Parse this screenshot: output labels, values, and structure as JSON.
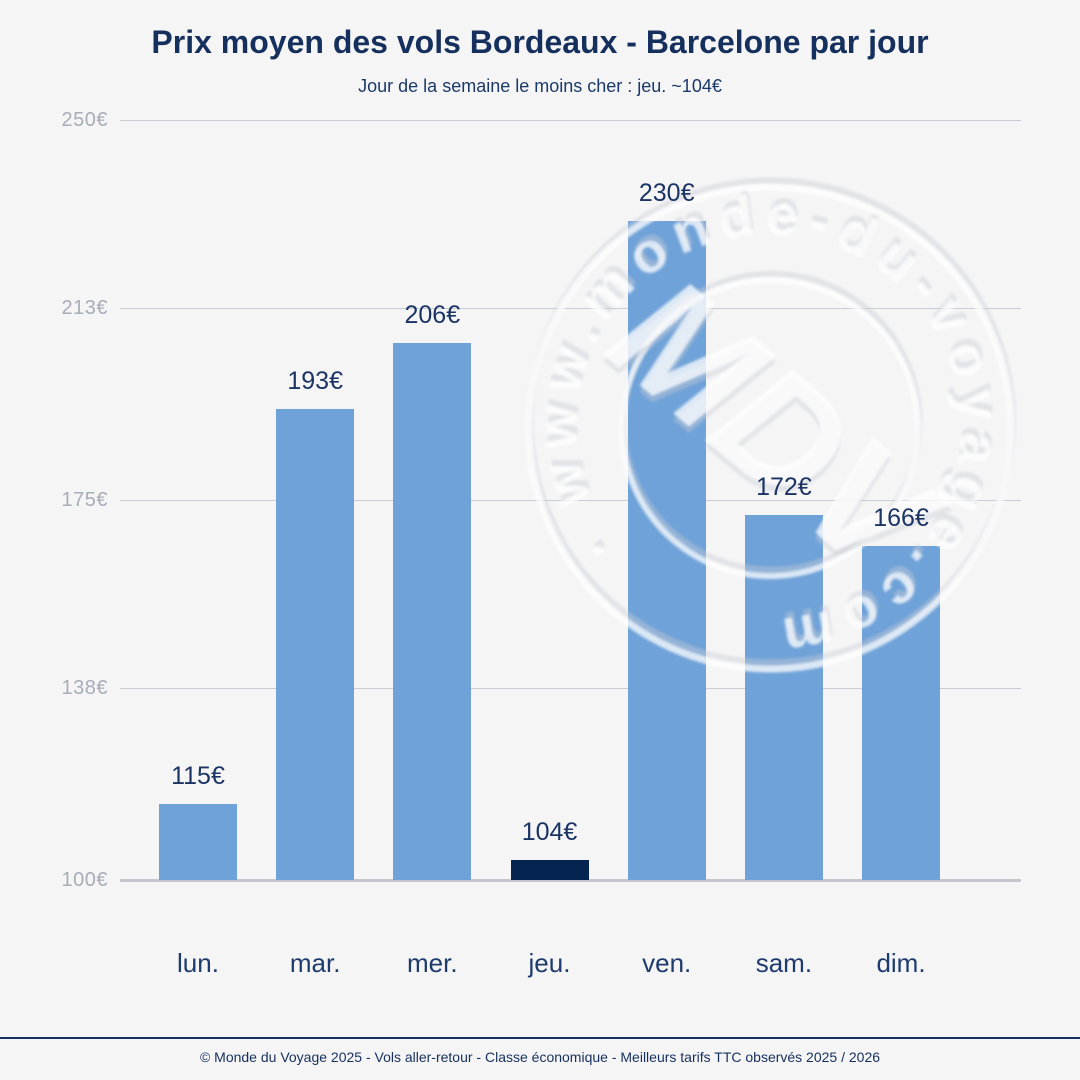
{
  "title": "Prix moyen des vols Bordeaux - Barcelone par jour",
  "subtitle": "Jour de la semaine le moins cher : jeu. ~104€",
  "footer": "© Monde du Voyage 2025 - Vols aller-retour - Classe économique - Meilleurs tarifs TTC observés 2025 / 2026",
  "watermark": {
    "ring_text": "· www.monde-du-voyage.com",
    "initials": "MDV"
  },
  "chart_data": {
    "type": "bar",
    "categories": [
      "lun.",
      "mar.",
      "mer.",
      "jeu.",
      "ven.",
      "sam.",
      "dim."
    ],
    "values": [
      115,
      193,
      206,
      104,
      230,
      172,
      166
    ],
    "value_labels": [
      "115€",
      "193€",
      "206€",
      "104€",
      "230€",
      "172€",
      "166€"
    ],
    "highlight_index": 3,
    "highlight_meaning": "cheapest day",
    "yticks": [
      100,
      138,
      175,
      213,
      250
    ],
    "ytick_labels": [
      "100€",
      "138€",
      "175€",
      "213€",
      "250€"
    ],
    "ylim": [
      100,
      250
    ],
    "xlabel": "",
    "ylabel": "",
    "grid": true,
    "legend": false,
    "colors": {
      "bar": "#6FA2D8",
      "highlight": "#05244F",
      "background": "#f5f5f6",
      "title": "#16305E",
      "gridline": "#C9CCD3",
      "tick_label": "#A6ACB8"
    }
  }
}
